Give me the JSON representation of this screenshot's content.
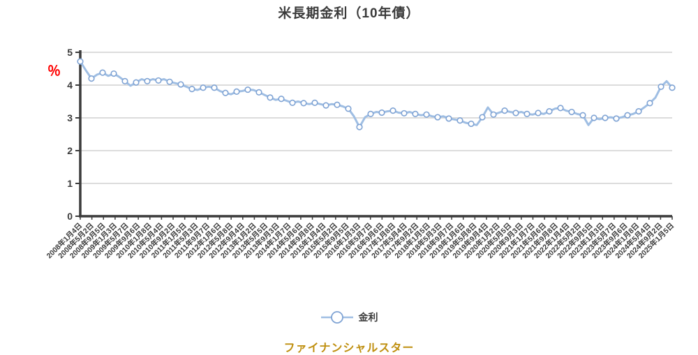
{
  "colors": {
    "line": "#9FBEE3",
    "marker_fill": "#FFFFFF",
    "marker_edge": "#7FA3D4",
    "axis": "#3B3B3B",
    "grid": "#DCDCDC",
    "text": "#3B3B3B",
    "unit_label": "#FF0000",
    "watermark": "#BF8F0F",
    "background": "#FFFFFF"
  },
  "watermark": "ファイナンシャルスター",
  "chart_data": {
    "type": "line",
    "title": "米長期金利（10年債）",
    "xlabel": "",
    "ylabel": "％",
    "ylim": [
      0,
      5
    ],
    "y_ticks": [
      0,
      1,
      2,
      3,
      4,
      5
    ],
    "grid": true,
    "legend_position": "bottom",
    "x_labels": [
      "2008年1月4日",
      "2008年5月2日",
      "2008年9月5日",
      "2009年1月3日",
      "2009年5月7日",
      "2009年9月6日",
      "2010年1月8日",
      "2010年5月4日",
      "2010年9月2日",
      "2011年1月5日",
      "2011年5月3日",
      "2011年9月7日",
      "2012年1月6日",
      "2012年5月8日",
      "2012年9月4日",
      "2013年1月2日",
      "2013年5月5日",
      "2013年9月3日",
      "2014年1月7日",
      "2014年5月6日",
      "2014年9月8日",
      "2015年1月4日",
      "2015年5月2日",
      "2015年9月5日",
      "2016年1月3日",
      "2016年5月7日",
      "2016年9月6日",
      "2017年1月8日",
      "2017年5月4日",
      "2017年9月2日",
      "2018年1月5日",
      "2018年5月3日",
      "2018年9月7日",
      "2019年1月6日",
      "2019年5月8日",
      "2019年9月4日",
      "2020年1月2日",
      "2020年5月5日",
      "2020年9月3日",
      "2021年1月7日",
      "2021年5月6日",
      "2021年9月8日",
      "2022年1月4日",
      "2022年5月2日",
      "2022年9月5日",
      "2023年1月3日",
      "2023年5月7日",
      "2023年9月6日",
      "2024年1月8日",
      "2024年5月4日",
      "2024年9月2日",
      "2025年1月5日"
    ],
    "series": [
      {
        "name": "金利",
        "color": "#9FBEE3",
        "marker_fill": "#FFFFFF",
        "marker_edge": "#7FA3D4",
        "values": [
          4.72,
          4.45,
          4.2,
          4.32,
          4.38,
          4.28,
          4.35,
          4.25,
          4.12,
          3.98,
          4.08,
          4.18,
          4.12,
          4.18,
          4.14,
          4.18,
          4.1,
          4.06,
          4.02,
          3.95,
          3.88,
          3.85,
          3.92,
          3.95,
          3.92,
          3.82,
          3.76,
          3.72,
          3.8,
          3.82,
          3.86,
          3.85,
          3.78,
          3.7,
          3.62,
          3.55,
          3.58,
          3.52,
          3.46,
          3.5,
          3.45,
          3.42,
          3.46,
          3.42,
          3.38,
          3.42,
          3.4,
          3.35,
          3.28,
          3.05,
          2.72,
          3.02,
          3.12,
          3.18,
          3.16,
          3.2,
          3.22,
          3.16,
          3.14,
          3.18,
          3.12,
          3.08,
          3.1,
          3.05,
          3.02,
          3.05,
          2.98,
          2.95,
          2.92,
          2.85,
          2.82,
          2.78,
          3.02,
          3.32,
          3.1,
          3.16,
          3.22,
          3.18,
          3.15,
          3.18,
          3.12,
          3.1,
          3.15,
          3.12,
          3.2,
          3.28,
          3.3,
          3.22,
          3.18,
          3.12,
          3.08,
          2.78,
          3.0,
          2.96,
          3.0,
          3.02,
          2.98,
          3.02,
          3.08,
          3.12,
          3.2,
          3.32,
          3.45,
          3.62,
          3.95,
          4.12,
          3.92
        ]
      }
    ]
  }
}
